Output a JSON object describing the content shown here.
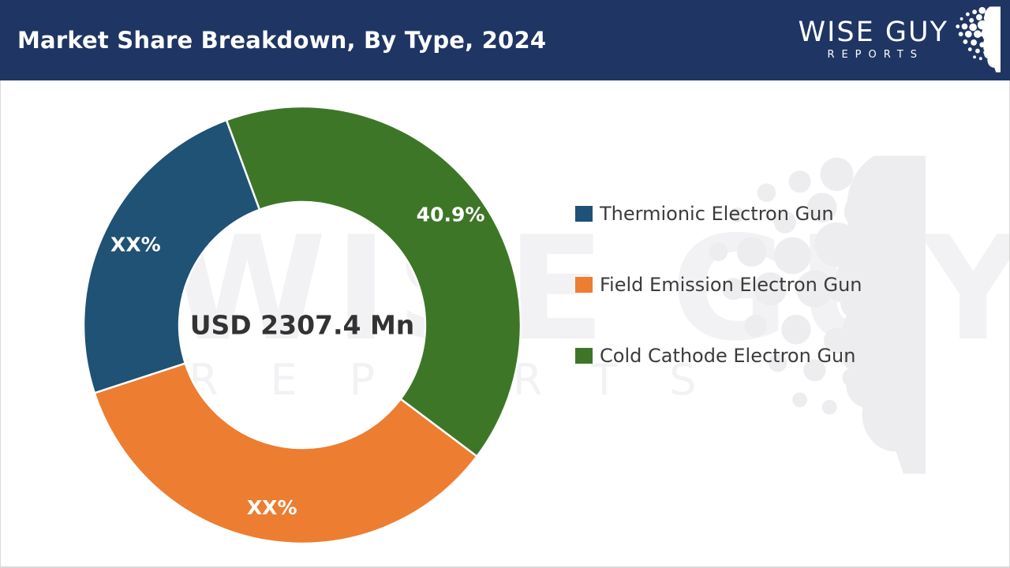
{
  "header": {
    "title": "Market Share Breakdown, By Type, 2024",
    "bg_color": "#1f3563",
    "logo": {
      "line1": "WISE GUY",
      "line2": "REPORTS"
    }
  },
  "watermark": {
    "line1": "WISE GUY",
    "line2": "REPORTS"
  },
  "chart_data": {
    "type": "pie",
    "subtype": "donut",
    "title": "Market Share Breakdown, By Type, 2024",
    "center_label": "USD 2307.4 Mn",
    "direction": "clockwise",
    "start_angle_deg": -20.3,
    "inner_radius_ratio": 0.563,
    "legend_position": "right",
    "segments": [
      {
        "name": "Cold Cathode Electron Gun",
        "value_pct": 40.9,
        "display_label": "40.9%",
        "color": "#3e7628"
      },
      {
        "name": "Field Emission Electron Gun",
        "value_pct": 34.7,
        "display_label": "XX%",
        "color": "#ed7d31"
      },
      {
        "name": "Thermionic Electron Gun",
        "value_pct": 24.4,
        "display_label": "XX%",
        "color": "#1f5274"
      }
    ],
    "legend": [
      {
        "label": "Thermionic Electron Gun",
        "color": "#1f5274"
      },
      {
        "label": "Field Emission Electron Gun",
        "color": "#ed7d31"
      },
      {
        "label": "Cold Cathode Electron Gun",
        "color": "#3e7628"
      }
    ]
  }
}
